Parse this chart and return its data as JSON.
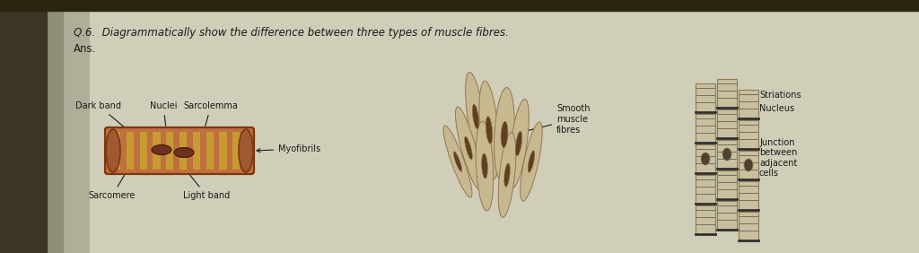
{
  "bg_color": "#ccc9b0",
  "page_bg_left": "#b8b5a0",
  "page_bg_right": "#d8d5c0",
  "top_bar_color": "#2a2510",
  "left_bar_color": "#3a3525",
  "question_text": "Q.6.  Diagrammatically show the difference between three types of muscle fibres.",
  "ans_text": "Ans.",
  "skeletal_labels": [
    "Dark band",
    "Nuclei",
    "Sarcolemma",
    "Myofibrils",
    "Sarcomere",
    "Light band"
  ],
  "smooth_labels": [
    "Smooth\nmuscle\nfibres"
  ],
  "cardiac_labels": [
    "Striations",
    "Nucleus",
    "Junction\nbetween\nadjacent\ncells"
  ],
  "font_size_question": 8.5,
  "font_size_ans": 8.5,
  "font_size_labels": 7,
  "text_color": "#1a1a1a",
  "fiber_body_color": "#c07040",
  "fiber_band_color": "#c8a030",
  "fiber_end_color": "#a05830",
  "fiber_edge_color": "#7a3810",
  "fiber_nucleus_color": "#703020",
  "smooth_body_color": "#c8b890",
  "smooth_edge_color": "#907850",
  "smooth_nucleus_color": "#604020",
  "cardiac_body_color": "#c8c0a0",
  "cardiac_edge_color": "#907850",
  "cardiac_stripe_color": "#707060",
  "cardiac_nucleus_color": "#504030",
  "cardiac_junction_color": "#303030"
}
